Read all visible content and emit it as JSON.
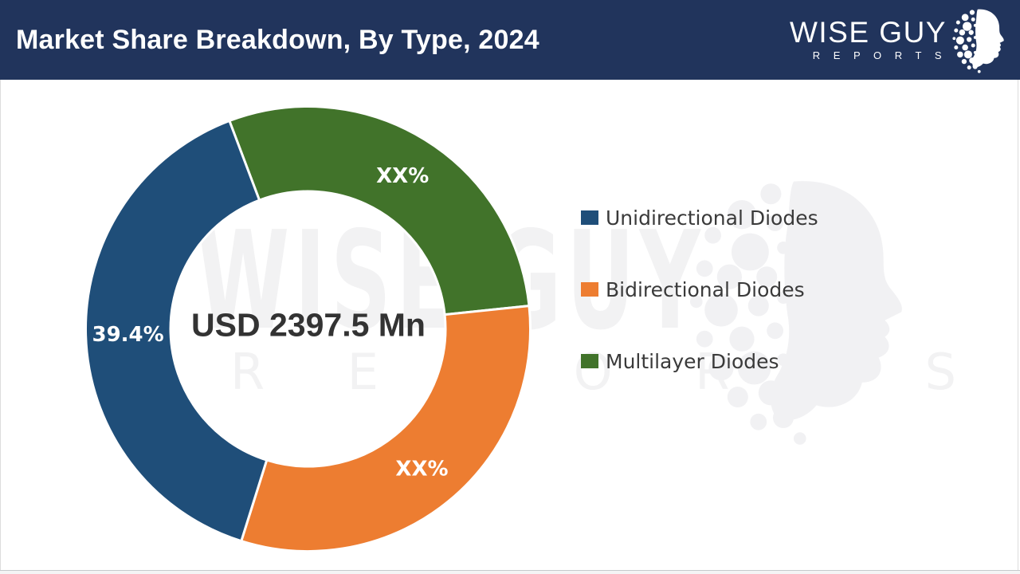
{
  "header": {
    "title": "Market Share Breakdown, By Type, 2024",
    "background_color": "#21345C",
    "logo": {
      "wordmark": "WISE GUY",
      "subtext": "R E P O R T S"
    }
  },
  "watermark": {
    "line1": "WISE GUY",
    "line2": "R E P O R T S"
  },
  "chart_data": {
    "type": "pie",
    "variant": "donut",
    "title": "Market Share Breakdown, By Type, 2024",
    "center_text": "USD 2397.5 Mn",
    "start_angle_deg": -20.7,
    "direction": "clockwise",
    "inner_radius_ratio": 0.62,
    "segments": [
      {
        "name": "Multilayer Diodes",
        "display_label": "XX%",
        "value_pct": 29.1,
        "color": "#41732A"
      },
      {
        "name": "Bidirectional Diodes",
        "display_label": "XX%",
        "value_pct": 31.5,
        "color": "#ED7D31"
      },
      {
        "name": "Unidirectional Diodes",
        "display_label": "39.4%",
        "value_pct": 39.4,
        "color": "#1F4E79"
      }
    ],
    "legend": [
      {
        "label": "Unidirectional Diodes",
        "color": "#1F4E79"
      },
      {
        "label": "Bidirectional Diodes",
        "color": "#ED7D31"
      },
      {
        "label": "Multilayer Diodes",
        "color": "#41732A"
      }
    ],
    "legend_position": "right"
  },
  "colors": {
    "page_background": "#FFFFFF",
    "center_text": "#333333",
    "legend_text": "#3A3A3A",
    "watermark": "#F2F2F3",
    "segment_divider": "#FFFFFF"
  }
}
